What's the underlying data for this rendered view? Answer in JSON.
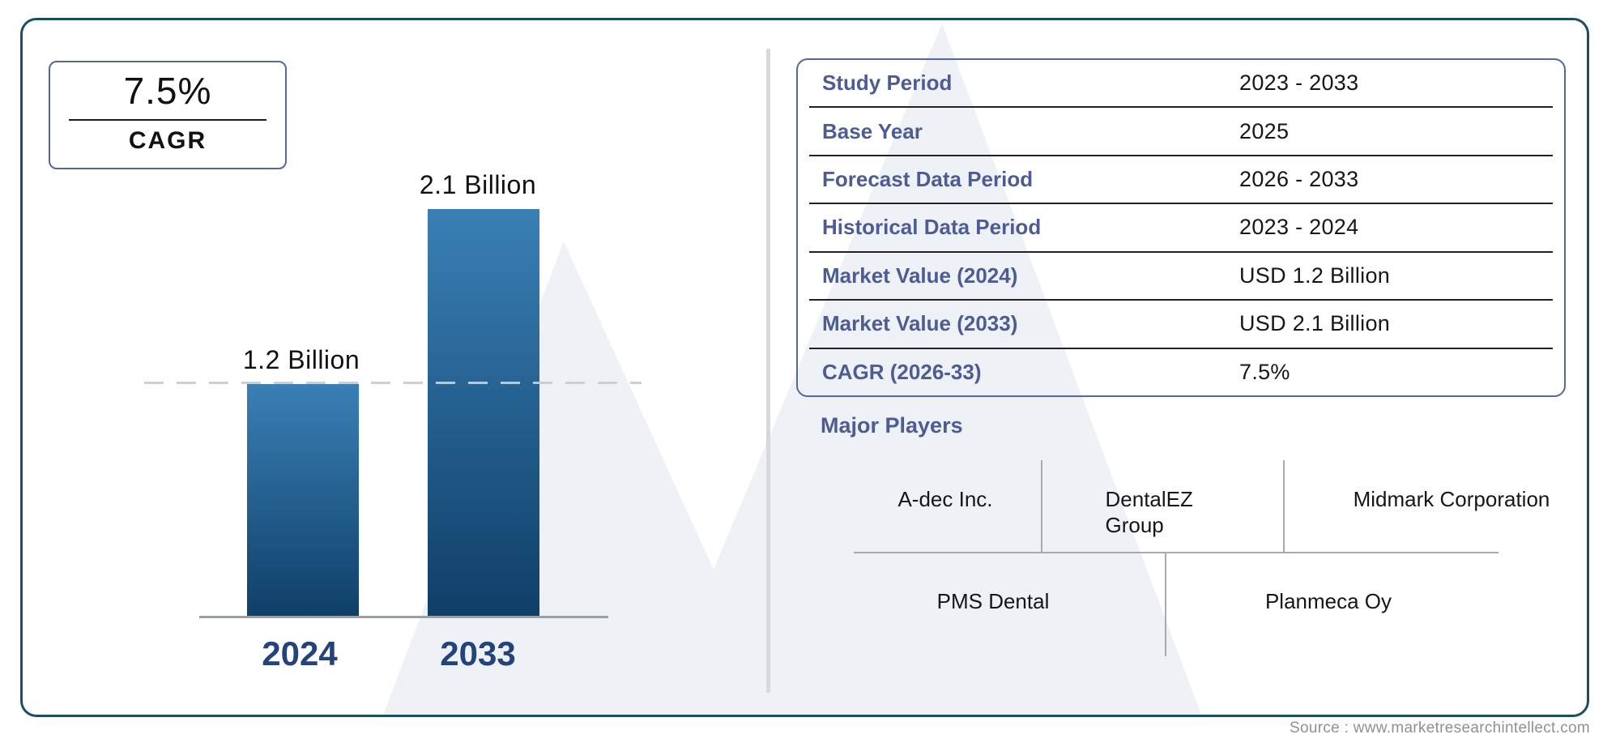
{
  "cagr_box": {
    "value": "7.5%",
    "label": "CAGR"
  },
  "chart_data": {
    "type": "bar",
    "title": "",
    "xlabel": "",
    "ylabel": "",
    "unit": "USD Billion",
    "categories": [
      "2024",
      "2033"
    ],
    "values": [
      1.2,
      2.1
    ],
    "value_labels": [
      "1.2 Billion",
      "2.1 Billion"
    ],
    "ylim": [
      0,
      2.1
    ],
    "reference_line_value": 1.2,
    "grid": false,
    "legend": false
  },
  "info_table": {
    "rows": [
      {
        "label": "Study Period",
        "value": "2023 - 2033"
      },
      {
        "label": "Base Year",
        "value": "2025"
      },
      {
        "label": "Forecast Data Period",
        "value": "2026 - 2033"
      },
      {
        "label": "Historical Data Period",
        "value": "2023 - 2024"
      },
      {
        "label": "Market Value (2024)",
        "value": "USD 1.2 Billion"
      },
      {
        "label": "Market Value (2033)",
        "value": "USD 2.1 Billion"
      },
      {
        "label": "CAGR (2026-33)",
        "value": "7.5%"
      }
    ]
  },
  "major_players": {
    "title": "Major Players",
    "top_row": [
      "A-dec Inc.",
      "DentalEZ Group",
      "Midmark Corporation"
    ],
    "bottom_row": [
      "PMS Dental",
      "Planmeca Oy"
    ]
  },
  "source": {
    "text": "Source : www.marketresearchintellect.com"
  },
  "colors": {
    "outer_border": "#1e4d68",
    "panel_border": "#56679c",
    "label_blue": "#4d5c93",
    "axis_label": "#24437b",
    "bar_top": "#3a80b5",
    "bar_bottom": "#0e3f68",
    "text_dark": "#161616",
    "divider_gray": "#d6d8da",
    "source_gray": "#8d9196",
    "watermark": "#eef1f5"
  }
}
